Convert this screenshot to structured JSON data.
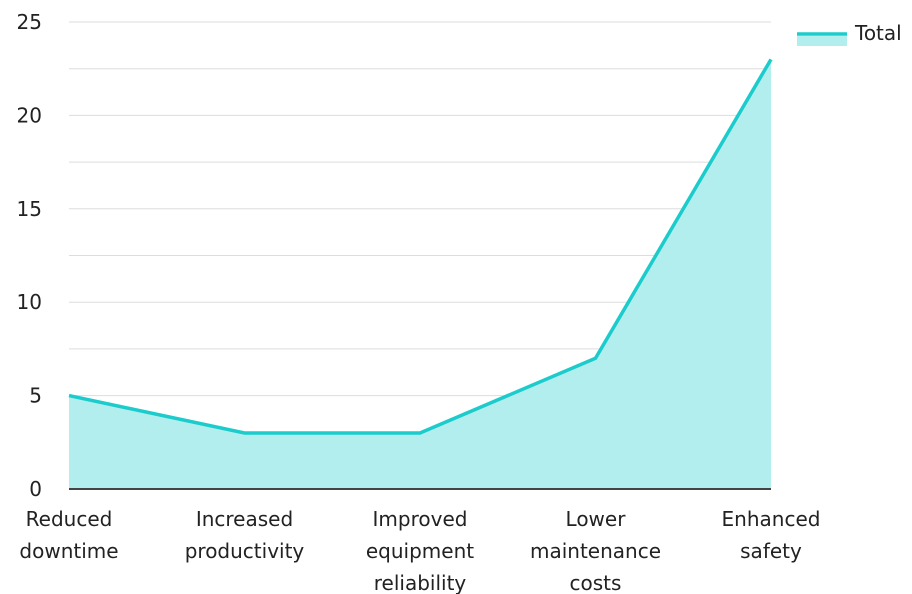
{
  "chart_data": {
    "type": "area",
    "categories": [
      [
        "Reduced",
        "downtime"
      ],
      [
        "Increased",
        "productivity"
      ],
      [
        "Improved",
        "equipment",
        "reliability"
      ],
      [
        "Lower",
        "maintenance",
        "costs"
      ],
      [
        "Enhanced",
        "safety"
      ]
    ],
    "series": [
      {
        "name": "Total",
        "values": [
          5,
          3,
          3,
          7,
          23
        ],
        "color": "#1ccccc",
        "fill": "#b3eeee"
      }
    ],
    "ylim": [
      0,
      25
    ],
    "yticks": [
      "0",
      "5",
      "10",
      "15",
      "20",
      "25"
    ],
    "grid": true,
    "legend": "top-right"
  }
}
